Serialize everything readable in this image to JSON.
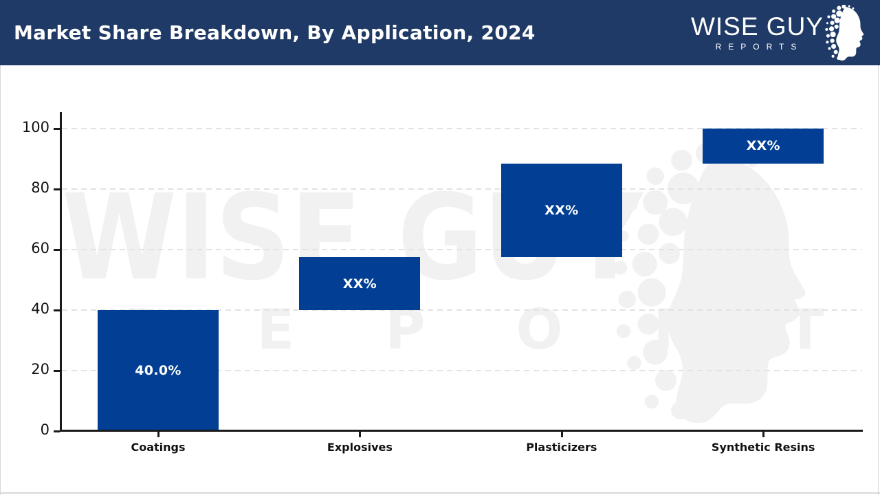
{
  "header": {
    "title": "Market Share Breakdown, By Application, 2024",
    "bg_color": "#1f3a66",
    "logo": {
      "line1": "WISE GUY",
      "line2": "REPORTS"
    }
  },
  "watermark": {
    "line1": "WISE GUY",
    "line2": "R E P O R T S",
    "color": "#f1f1f1"
  },
  "chart_data": {
    "type": "bar",
    "subtype": "waterfall",
    "title": "Market Share Breakdown, By Application, 2024",
    "categories": [
      "Coatings",
      "Explosives",
      "Plasticizers",
      "Synthetic Resins"
    ],
    "segments": [
      {
        "category": "Coatings",
        "start": 0,
        "end": 40,
        "value": 40,
        "label": "40.0%"
      },
      {
        "category": "Explosives",
        "start": 40,
        "end": 57.5,
        "value": 17.5,
        "label": "XX%"
      },
      {
        "category": "Plasticizers",
        "start": 57.5,
        "end": 88.5,
        "value": 31,
        "label": "XX%"
      },
      {
        "category": "Synthetic Resins",
        "start": 88.5,
        "end": 100,
        "value": 11.5,
        "label": "XX%"
      }
    ],
    "ylim": [
      0,
      100
    ],
    "yticks": [
      0,
      20,
      40,
      60,
      80,
      100
    ],
    "xlabel": "",
    "ylabel": "",
    "grid": "horizontal-dashed",
    "legend": "none",
    "bar_color": "#023f94",
    "bar_label_color": "#ffffff",
    "grid_color": "#e2e2e2",
    "axis_color": "#1a1a1a"
  }
}
